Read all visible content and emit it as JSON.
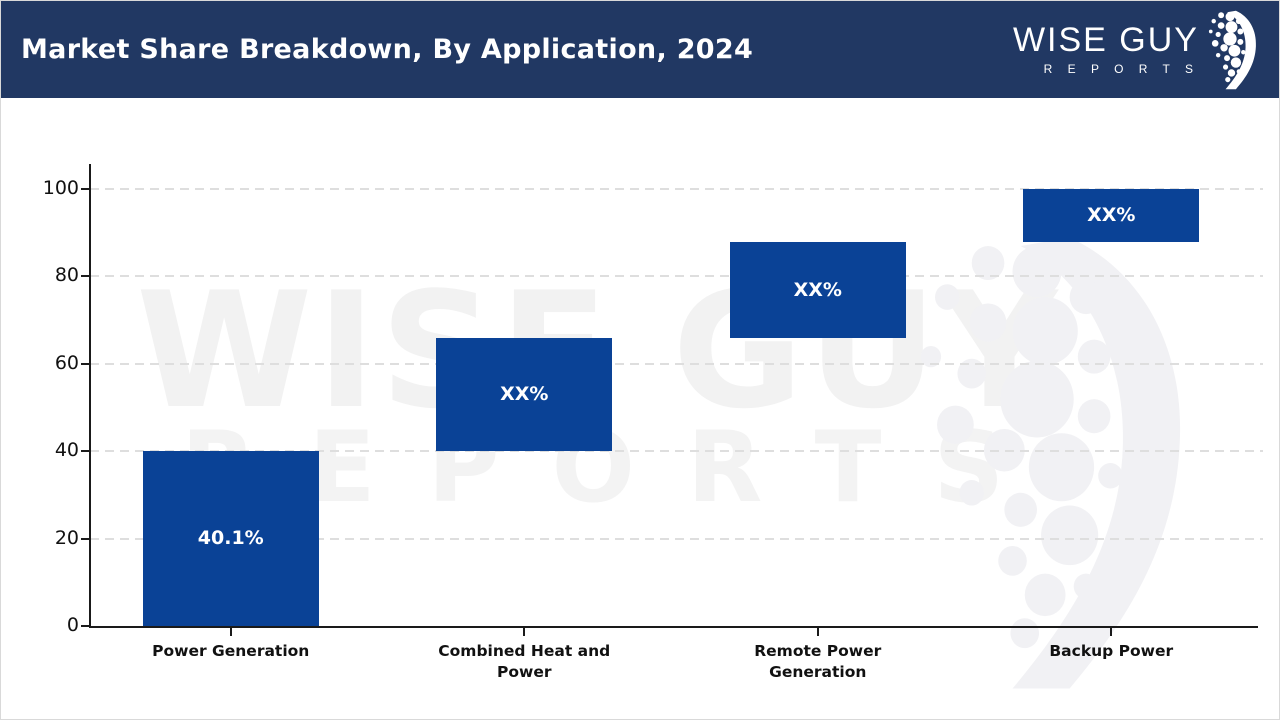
{
  "header": {
    "title": "Market Share Breakdown, By Application, 2024",
    "logo": {
      "wordmark": "WISE GUY",
      "tagline": "R E P O R T S",
      "face_icon": "dotted-face-profile-icon"
    },
    "bg_color": "#213863"
  },
  "watermark": {
    "wordmark": "WISE GUY",
    "tagline": "R E P O R T S",
    "face_icon": "dotted-face-profile-icon",
    "color": "#f2f2f2"
  },
  "chart_data": {
    "type": "bar",
    "variant": "waterfall",
    "title": "Market Share Breakdown, By Application, 2024",
    "categories": [
      "Power Generation",
      "Combined Heat and Power",
      "Remote Power Generation",
      "Backup Power"
    ],
    "segments": [
      {
        "category": "Power Generation",
        "start": 0,
        "end": 40.1,
        "label": "40.1%"
      },
      {
        "category": "Combined Heat and Power",
        "start": 40.1,
        "end": 65.8,
        "label": "XX%"
      },
      {
        "category": "Remote Power Generation",
        "start": 65.8,
        "end": 87.8,
        "label": "XX%"
      },
      {
        "category": "Backup Power",
        "start": 87.8,
        "end": 100,
        "label": "XX%"
      }
    ],
    "yticks": [
      0,
      20,
      40,
      60,
      80,
      100
    ],
    "ylim": [
      0,
      105.6
    ],
    "xlabel": "",
    "ylabel": "",
    "grid": "horizontal-dashed",
    "legend": "none",
    "colors": {
      "bar": "#0a4296",
      "bar_label": "#ffffff",
      "axis": "#1a1a1a",
      "gridline": "#dedede"
    }
  }
}
